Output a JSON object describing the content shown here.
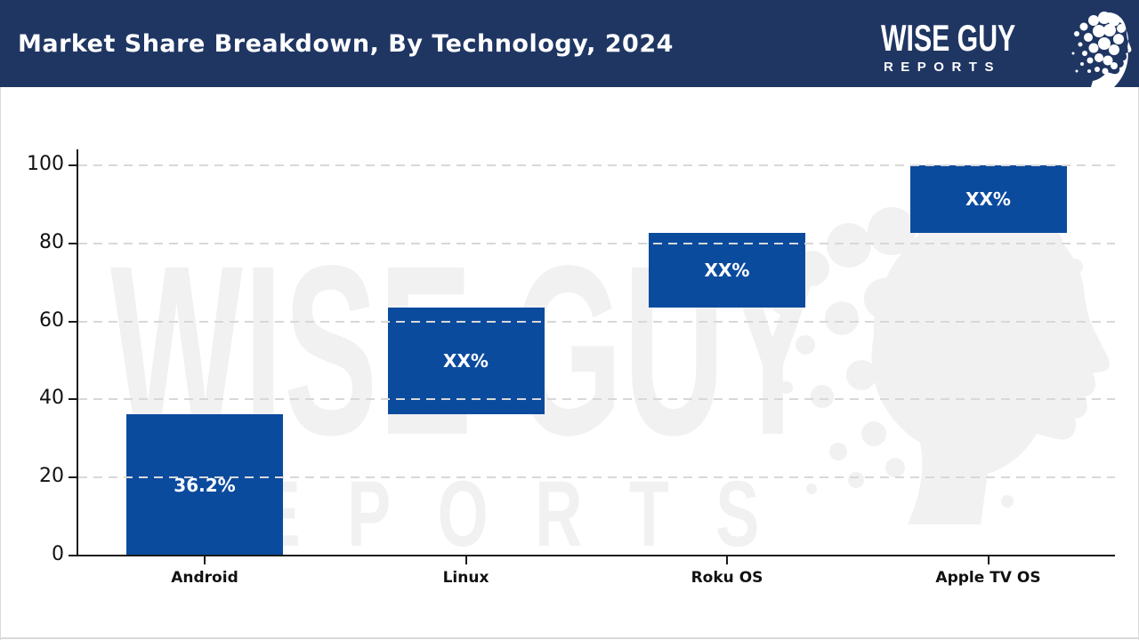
{
  "header": {
    "title": "Market Share Breakdown, By Technology, 2024",
    "brand": {
      "name": "WISE GUY",
      "subtitle": "REPORTS"
    }
  },
  "watermark": {
    "line1": "WISE GUY",
    "line2": "REPORTS"
  },
  "chart_data": {
    "type": "bar",
    "subtype": "floating-segment-waterfall",
    "title": "Market Share Breakdown, By Technology, 2024",
    "categories": [
      "Android",
      "Linux",
      "Roku OS",
      "Apple TV OS"
    ],
    "segments": [
      {
        "category": "Android",
        "start": 0,
        "end": 36.2,
        "label": "36.2%"
      },
      {
        "category": "Linux",
        "start": 36.2,
        "end": 63.5,
        "label": "XX%"
      },
      {
        "category": "Roku OS",
        "start": 63.5,
        "end": 82.6,
        "label": "XX%"
      },
      {
        "category": "Apple TV OS",
        "start": 82.6,
        "end": 100,
        "label": "XX%"
      }
    ],
    "y_ticks": [
      0,
      20,
      40,
      60,
      80,
      100
    ],
    "ylim": [
      0,
      104
    ],
    "xlabel": "",
    "ylabel": "",
    "grid": "horizontal-dashed",
    "legend": "none",
    "bar_color": "#0b4b9e",
    "bar_label_color": "#ffffff"
  },
  "colors": {
    "header_bg": "#1f3663",
    "bar": "#0b4b9e",
    "grid": "#d8d8d8",
    "axis": "#1a1a1a",
    "watermark": "#f1f1f1",
    "frame": "#d9d9d9"
  }
}
